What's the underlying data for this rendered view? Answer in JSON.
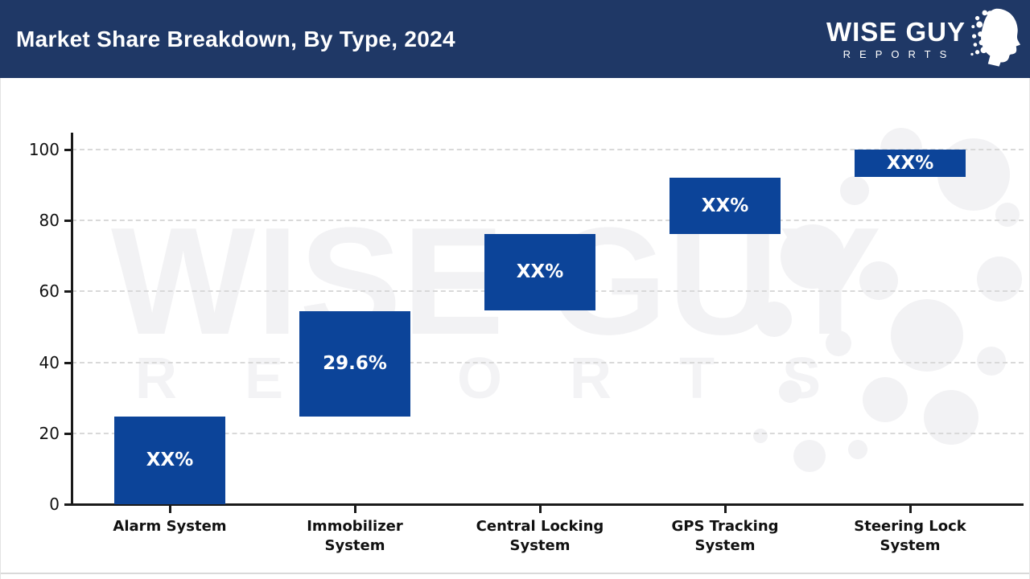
{
  "header": {
    "title": "Market Share Breakdown, By Type, 2024",
    "logo": {
      "line1": "WISE GUY",
      "line2": "REPORTS"
    }
  },
  "watermark": {
    "line1": "WISE GUY",
    "line2": "REPORTS"
  },
  "chart_data": {
    "type": "bar",
    "subtype": "floating-segment-waterfall",
    "title": "Market Share Breakdown, By Type, 2024",
    "categories": [
      "Alarm System",
      "Immobilizer System",
      "Central Locking\nSystem",
      "GPS Tracking\nSystem",
      "Steering Lock\nSystem"
    ],
    "bars": [
      {
        "category": "Alarm System",
        "base": 0,
        "top": 24.8,
        "label": "XX%"
      },
      {
        "category": "Immobilizer System",
        "base": 24.8,
        "top": 54.4,
        "label": "29.6%"
      },
      {
        "category": "Central Locking System",
        "base": 54.6,
        "top": 76.2,
        "label": "XX%"
      },
      {
        "category": "GPS Tracking System",
        "base": 76.2,
        "top": 92.0,
        "label": "XX%"
      },
      {
        "category": "Steering Lock System",
        "base": 92.2,
        "top": 100.0,
        "label": "XX%"
      }
    ],
    "y_ticks": [
      0,
      20,
      40,
      60,
      80,
      100
    ],
    "ylim": [
      0,
      100
    ],
    "xlabel": "",
    "ylabel": "",
    "grid": "horizontal-dashed",
    "legend": "none",
    "bar_color": "#0c4499"
  },
  "colors": {
    "header_bg": "#1f3866",
    "bar": "#0c4499",
    "grid": "#d9d9d9",
    "axis": "#1a1a1a",
    "watermark": "#f2f2f4",
    "bottom_line": "#d9d9d9"
  }
}
